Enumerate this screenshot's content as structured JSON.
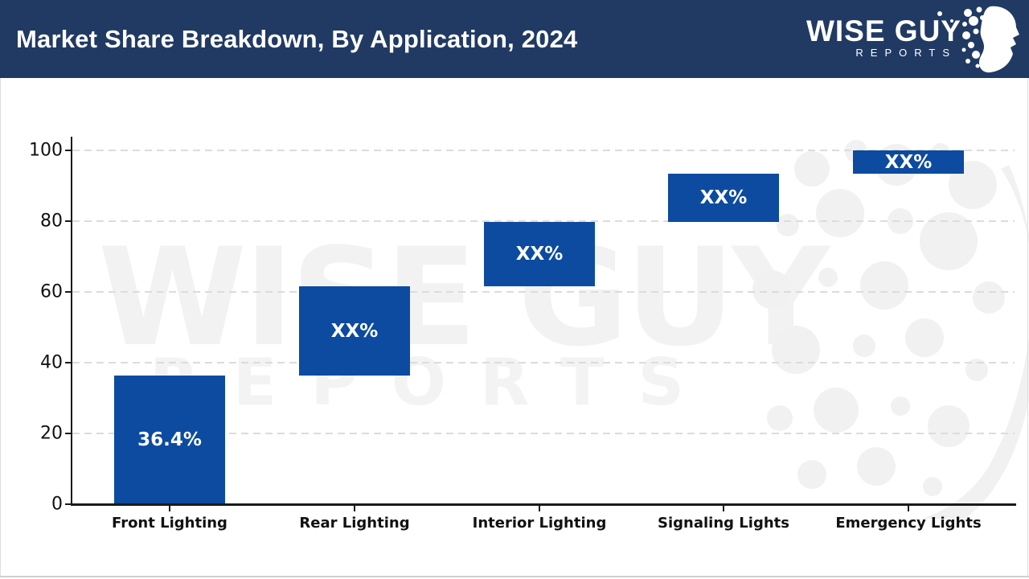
{
  "header": {
    "title": "Market Share Breakdown, By Application, 2024",
    "logo": {
      "line1": "WISE GUY",
      "line2": "REPORTS"
    }
  },
  "watermark": {
    "line1": "WISE GUY",
    "line2": "REPORTS"
  },
  "colors": {
    "header_bg": "#213A64",
    "bar": "#0C4BA0",
    "bar_label": "#FFFFFF",
    "grid": "#DCDCDC",
    "axis": "#1A1A1A",
    "watermark": "#F2F2F3"
  },
  "chart_data": {
    "type": "bar",
    "subtype": "waterfall",
    "title": "Market Share Breakdown, By Application, 2024",
    "categories": [
      "Front Lighting",
      "Rear Lighting",
      "Interior Lighting",
      "Signaling Lights",
      "Emergency Lights"
    ],
    "series": [
      {
        "name": "Market Share",
        "segments": [
          {
            "start": 0,
            "end": 36.4,
            "label": "36.4%"
          },
          {
            "start": 36.4,
            "end": 61.5,
            "label": "XX%"
          },
          {
            "start": 61.5,
            "end": 79.7,
            "label": "XX%"
          },
          {
            "start": 79.7,
            "end": 93.5,
            "label": "XX%"
          },
          {
            "start": 93.5,
            "end": 100,
            "label": "XX%"
          }
        ]
      }
    ],
    "xlabel": "",
    "ylabel": "",
    "ylim": [
      0,
      104
    ],
    "yticks": [
      0,
      20,
      40,
      60,
      80,
      100
    ],
    "grid": "horizontal-dashed",
    "legend": "none"
  }
}
